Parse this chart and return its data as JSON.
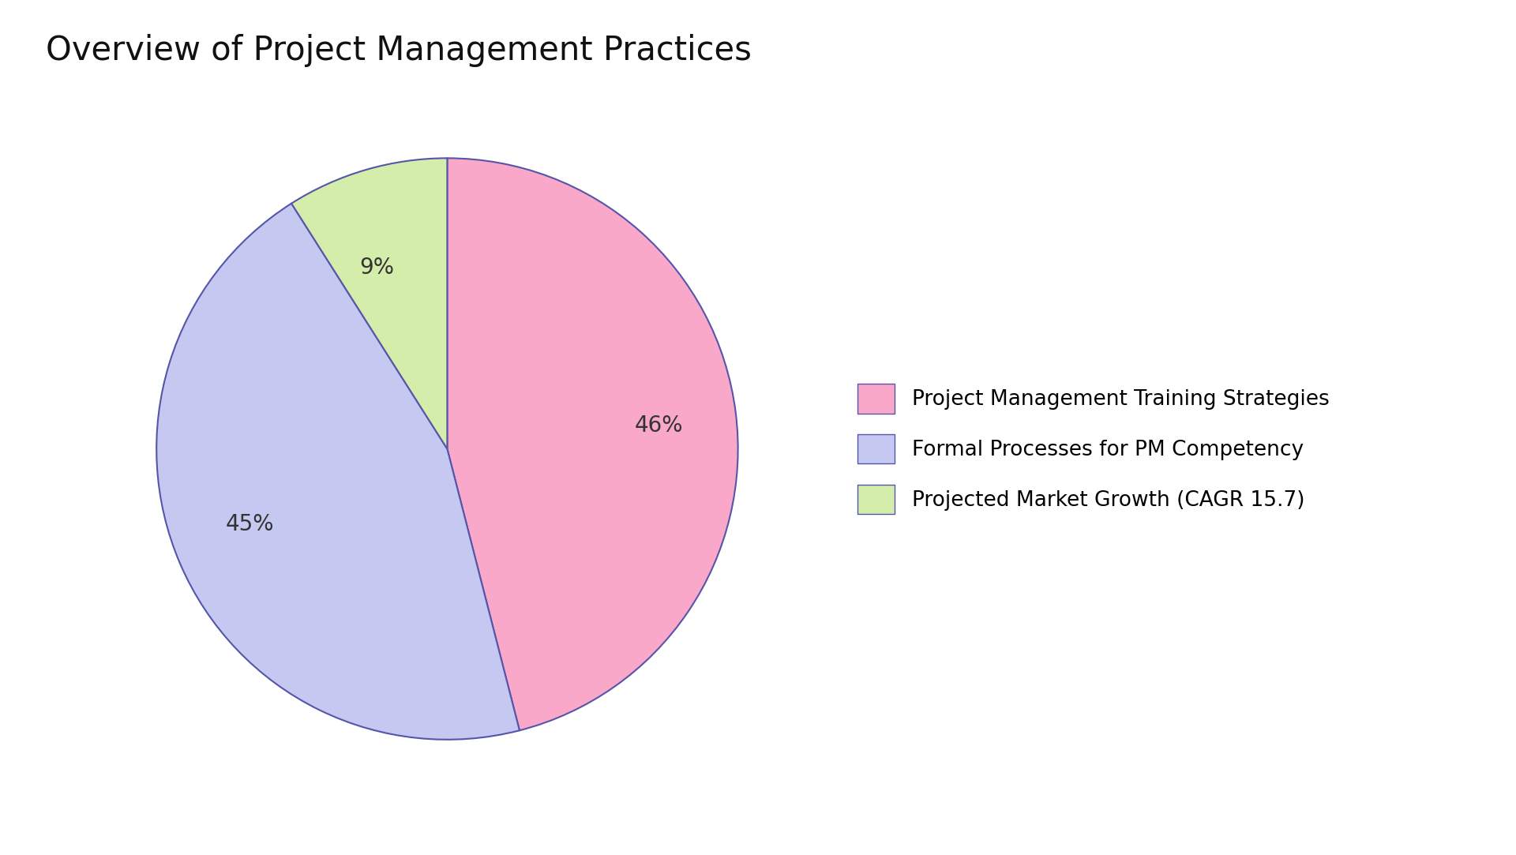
{
  "title": "Overview of Project Management Practices",
  "slices": [
    46,
    45,
    9
  ],
  "labels": [
    "46%",
    "45%",
    "9%"
  ],
  "colors": [
    "#F9A8C9",
    "#C5C8F0",
    "#D4EDAA"
  ],
  "legend_labels": [
    "Project Management Training Strategies",
    "Formal Processes for PM Competency",
    "Projected Market Growth (CAGR 15.7)"
  ],
  "legend_colors": [
    "#F9A8C9",
    "#C5C8F0",
    "#D4EDAA"
  ],
  "background_color": "#FFFFFF",
  "title_fontsize": 30,
  "label_fontsize": 20,
  "legend_fontsize": 19,
  "startangle": 90,
  "edge_color": "#5555AA",
  "edge_linewidth": 1.5,
  "label_color": "#333333"
}
